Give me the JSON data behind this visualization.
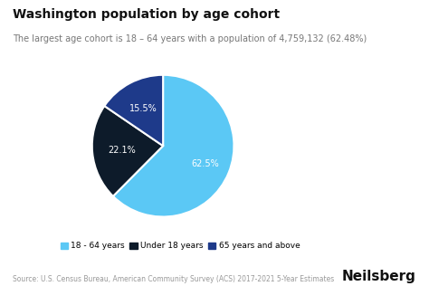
{
  "title": "Washington population by age cohort",
  "subtitle": "The largest age cohort is 18 – 64 years with a population of 4,759,132 (62.48%)",
  "labels": [
    "18 - 64 years",
    "Under 18 years",
    "65 years and above"
  ],
  "values": [
    62.5,
    22.1,
    15.5
  ],
  "colors": [
    "#5BC8F5",
    "#0D1B2A",
    "#1E3A8A"
  ],
  "pct_labels": [
    "62.5%",
    "22.1%",
    "15.5%"
  ],
  "source": "Source: U.S. Census Bureau, American Community Survey (ACS) 2017-2021 5-Year Estimates",
  "branding": "Neilsberg",
  "background_color": "#ffffff",
  "title_fontsize": 10,
  "subtitle_fontsize": 7,
  "startangle": 90
}
